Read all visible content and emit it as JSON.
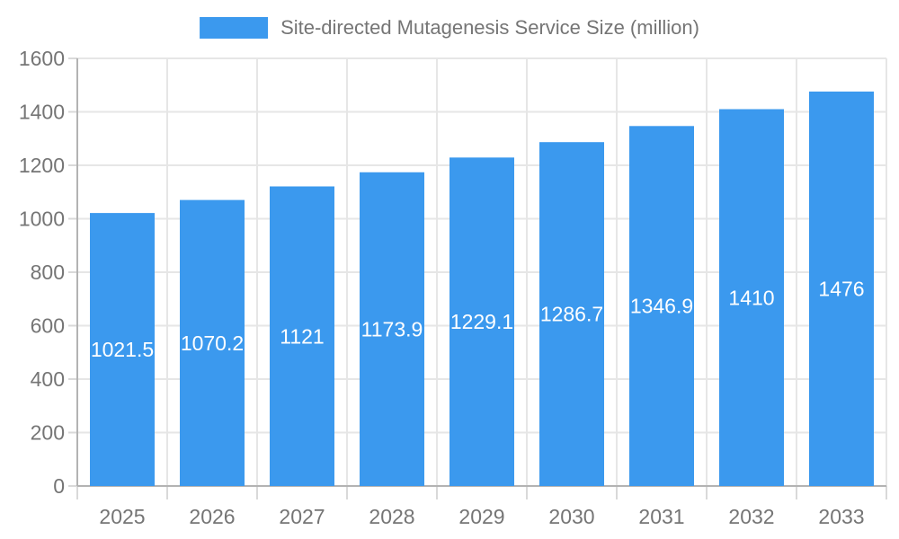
{
  "legend": {
    "series_label": "Site-directed Mutagenesis Service Size (million)"
  },
  "chart_data": {
    "type": "bar",
    "title": "Site-directed Mutagenesis Service Size (million)",
    "categories": [
      "2025",
      "2026",
      "2027",
      "2028",
      "2029",
      "2030",
      "2031",
      "2032",
      "2033"
    ],
    "values": [
      1021.5,
      1070.2,
      1121,
      1173.9,
      1229.1,
      1286.7,
      1346.9,
      1410,
      1476
    ],
    "bar_labels": [
      "1021.5",
      "1070.2",
      "1121",
      "1173.9",
      "1229.1",
      "1286.7",
      "1346.9",
      "1410",
      "1476"
    ],
    "xlabel": "",
    "ylabel": "",
    "ylim": [
      0,
      1600
    ],
    "ytick_step": 200,
    "ytick_labels": [
      "0",
      "200",
      "400",
      "600",
      "800",
      "1000",
      "1200",
      "1400",
      "1600"
    ],
    "grid": true,
    "legend_position": "top-center",
    "colors": {
      "bar": "#3b99ee",
      "bar_label_text": "#ffffff",
      "axis_text": "#757575",
      "axis_line": "#b3b3b3",
      "gridline": "#e6e6e6",
      "tick": "#d9d9d9",
      "background": "#ffffff"
    }
  }
}
